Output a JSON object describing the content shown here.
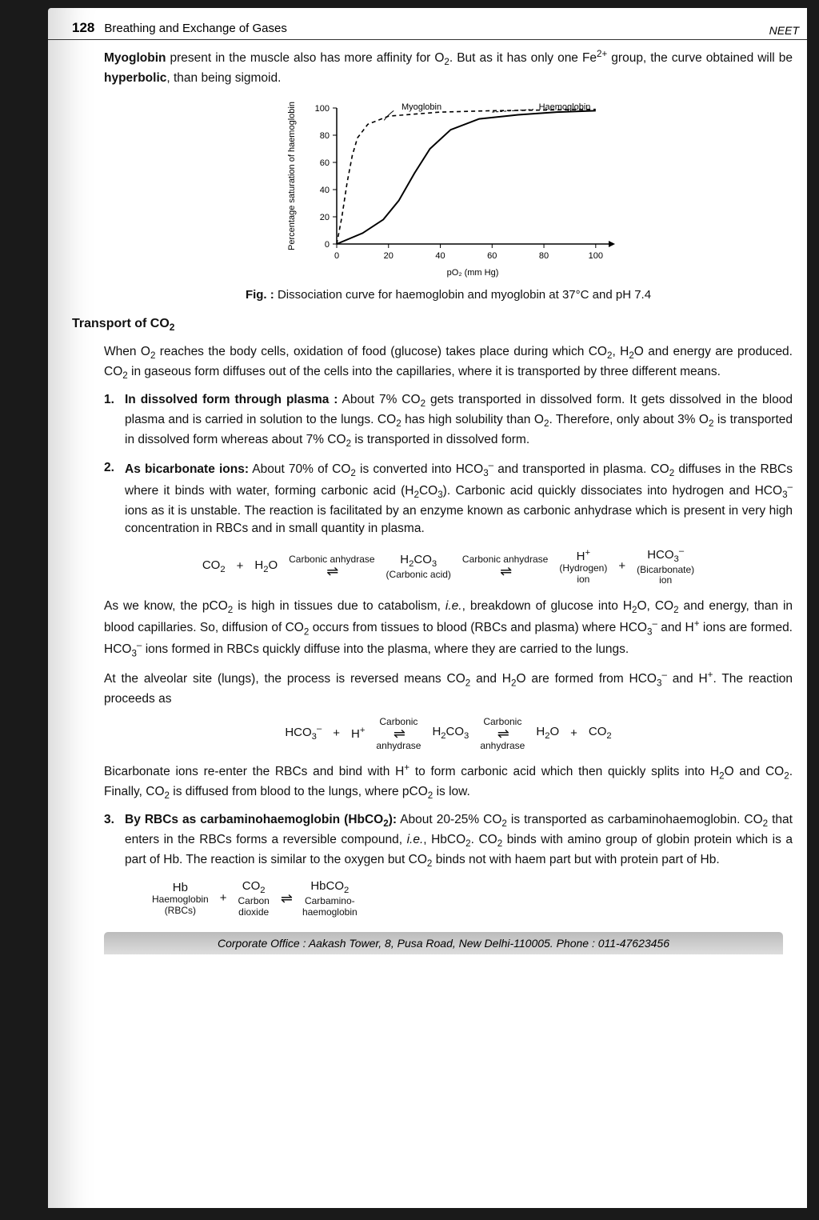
{
  "header": {
    "page_number": "128",
    "chapter_title": "Breathing and Exchange of Gases",
    "corner_label": "NEET"
  },
  "intro_para": "Myoglobin present in the muscle also has more affinity for O₂. But as it has only one Fe²⁺ group, the curve obtained will be hyperbolic, than being sigmoid.",
  "chart": {
    "type": "line",
    "y_label": "Percentage saturation of haemoglobin",
    "x_label": "pO₂ (mm Hg)",
    "series": [
      {
        "name": "Myoglobin",
        "label": "Myoglobin",
        "color": "#000000",
        "dash": "5,4",
        "width": 1.6,
        "points": [
          [
            0,
            0
          ],
          [
            2,
            20
          ],
          [
            4,
            45
          ],
          [
            6,
            65
          ],
          [
            8,
            78
          ],
          [
            12,
            88
          ],
          [
            20,
            94
          ],
          [
            40,
            97
          ],
          [
            60,
            98
          ],
          [
            80,
            98.5
          ],
          [
            100,
            99
          ]
        ]
      },
      {
        "name": "Haemoglobin",
        "label": "Haemoglobin",
        "color": "#000000",
        "dash": "none",
        "width": 2.0,
        "points": [
          [
            0,
            0
          ],
          [
            10,
            8
          ],
          [
            18,
            18
          ],
          [
            24,
            32
          ],
          [
            30,
            52
          ],
          [
            36,
            70
          ],
          [
            44,
            84
          ],
          [
            55,
            92
          ],
          [
            70,
            95
          ],
          [
            85,
            97
          ],
          [
            100,
            98
          ]
        ]
      }
    ],
    "xlim": [
      0,
      105
    ],
    "ylim": [
      0,
      100
    ],
    "xticks": [
      0,
      20,
      40,
      60,
      80,
      100
    ],
    "yticks": [
      0,
      20,
      40,
      60,
      80,
      100
    ],
    "label_fontsize": 11,
    "tick_fontsize": 11,
    "bg": "#ffffff",
    "axis_color": "#000000"
  },
  "fig_caption": "Fig. : Dissociation curve for haemoglobin and myoglobin at 37°C and pH 7.4",
  "section_title": "Transport of CO₂",
  "para_transport_intro": "When O₂ reaches the body cells, oxidation of food (glucose) takes place during which CO₂, H₂O and energy are produced. CO₂ in gaseous form diffuses out of the cells into the capillaries, where it is transported by three different means.",
  "items": {
    "1": {
      "num": "1.",
      "title": "In dissolved form through plasma :",
      "body": " About 7% CO₂ gets transported in dissolved form. It gets dissolved in the blood plasma and is carried in solution to the lungs. CO₂ has high solubility than O₂. Therefore, only about 3% O₂ is transported in dissolved form whereas about 7% CO₂ is transported in dissolved form."
    },
    "2": {
      "num": "2.",
      "title": "As bicarbonate ions:",
      "body": " About 70% of CO₂ is converted into HCO₃⁻ and transported in plasma. CO₂ diffuses in the RBCs where it binds with water, forming carbonic acid (H₂CO₃). Carbonic acid quickly dissociates into hydrogen and HCO₃⁻ ions as it is unstable. The reaction is facilitated by an enzyme known as carbonic anhydrase which is present in very high concentration in RBCs and in small quantity in plasma."
    },
    "3": {
      "num": "3.",
      "title": "By RBCs as carbaminohaemoglobin (HbCO₂):",
      "body": " About 20-25% CO₂ is transported as carbaminohaemoglobin. CO₂ that enters in the RBCs forms a reversible compound, i.e., HbCO₂. CO₂ binds with amino group of globin protein which is a part of Hb. The reaction is similar to the oxygen but CO₂ binds not with haem part but with protein part of Hb."
    }
  },
  "eqn1": {
    "t1": "CO₂",
    "t2": "+",
    "t3": "H₂O",
    "arrow1_label": "Carbonic anhydrase",
    "t4": "H₂CO₃",
    "t4_sub": "(Carbonic acid)",
    "arrow2_label": "Carbonic anhydrase",
    "t5": "H⁺",
    "t5_sub": "(Hydrogen) ion",
    "t6": "+",
    "t7": "HCO₃⁻",
    "t7_sub": "(Bicarbonate) ion"
  },
  "para_after_eqn1": "As we know, the pCO₂ is high in tissues due to catabolism, i.e., breakdown of glucose into H₂O, CO₂ and energy, than in blood capillaries. So, diffusion of CO₂ occurs from tissues to blood (RBCs and plasma) where HCO₃⁻ and H⁺ ions are formed. HCO₃⁻ ions formed in RBCs quickly diffuse into the plasma, where they are carried to the lungs.",
  "para_alveolar": "At the alveolar site (lungs), the process is reversed means CO₂ and H₂O are formed from HCO₃⁻ and H⁺. The reaction proceeds as",
  "eqn2": {
    "t1": "HCO₃⁻",
    "t2": "+",
    "t3": "H⁺",
    "arrow1_top": "Carbonic",
    "arrow1_bot": "anhydrase",
    "t4": "H₂CO₃",
    "arrow2_top": "Carbonic",
    "arrow2_bot": "anhydrase",
    "t5": "H₂O",
    "t6": "+",
    "t7": "CO₂"
  },
  "para_bicarb_reenter": "Bicarbonate ions re-enter the RBCs and bind with H⁺ to form carbonic acid which then quickly splits into H₂O and CO₂. Finally, CO₂ is diffused from blood to the lungs, where pCO₂ is low.",
  "eqn3": {
    "t1": "Hb",
    "t1_sub": "Haemoglobin (RBCs)",
    "t2": "+",
    "t3": "CO₂",
    "t3_sub": "Carbon dioxide",
    "t4": "HbCO₂",
    "t4_sub": "Carbamino- haemoglobin"
  },
  "footer": "Corporate Office : Aakash Tower, 8, Pusa Road, New Delhi-110005. Phone : 011-47623456"
}
